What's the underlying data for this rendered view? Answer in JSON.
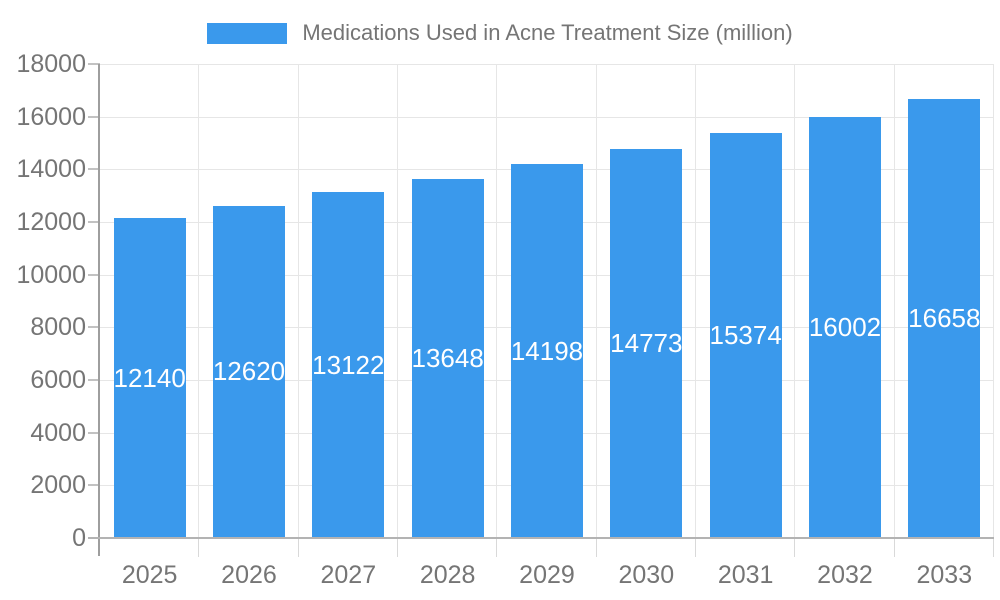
{
  "legend": {
    "label": "Medications Used in Acne Treatment Size (million)"
  },
  "chart_data": {
    "type": "bar",
    "title": "Medications Used in Acne Treatment Size (million)",
    "series_name": "Medications Used in Acne Treatment Size (million)",
    "categories": [
      "2025",
      "2026",
      "2027",
      "2028",
      "2029",
      "2030",
      "2031",
      "2032",
      "2033"
    ],
    "values": [
      12140,
      12620,
      13122,
      13648,
      14198,
      14773,
      15374,
      16002,
      16658
    ],
    "bar_labels": [
      "12140",
      "12620",
      "13122",
      "13648",
      "14198",
      "14773",
      "15374",
      "16002",
      "16658"
    ],
    "xlabel": "",
    "ylabel": "",
    "ylim": [
      0,
      18000
    ],
    "ytick_step": 2000,
    "yticks": [
      0,
      2000,
      4000,
      6000,
      8000,
      10000,
      12000,
      14000,
      16000,
      18000
    ],
    "grid": true,
    "legend_position": "top-center",
    "colors": {
      "bar": "#3A99EC",
      "bar_label": "#ffffff",
      "axis_text": "#757575",
      "gridline": "#e6e6e6",
      "axis_line": "#9e9e9e",
      "baseline": "#b3b3b3"
    }
  }
}
